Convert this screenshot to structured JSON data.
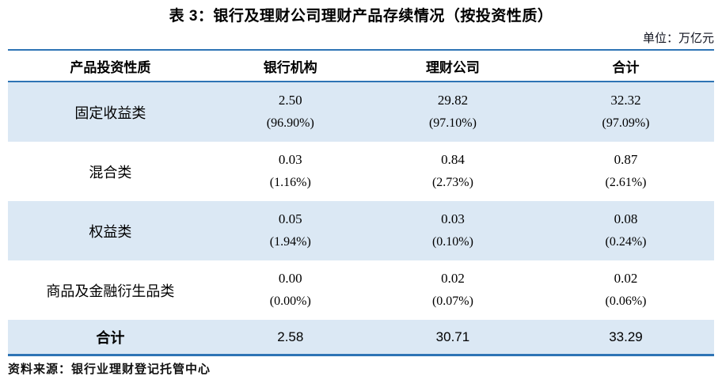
{
  "title": "表 3：银行及理财公司理财产品存续情况（按投资性质）",
  "unit_label": "单位：万亿元",
  "colors": {
    "accent_line": "#2e74b5",
    "band_fill": "#dbe8f4"
  },
  "table": {
    "columns": [
      "产品投资性质",
      "银行机构",
      "理财公司",
      "合计"
    ],
    "rows": [
      {
        "label": "固定收益类",
        "values": [
          "2.50",
          "29.82",
          "32.32"
        ],
        "pcts": [
          "(96.90%)",
          "(97.10%)",
          "(97.09%)"
        ]
      },
      {
        "label": "混合类",
        "values": [
          "0.03",
          "0.84",
          "0.87"
        ],
        "pcts": [
          "(1.16%)",
          "(2.73%)",
          "(2.61%)"
        ]
      },
      {
        "label": "权益类",
        "values": [
          "0.05",
          "0.03",
          "0.08"
        ],
        "pcts": [
          "(1.94%)",
          "(0.10%)",
          "(0.24%)"
        ]
      },
      {
        "label": "商品及金融衍生品类",
        "values": [
          "0.00",
          "0.02",
          "0.02"
        ],
        "pcts": [
          "(0.00%)",
          "(0.07%)",
          "(0.06%)"
        ]
      }
    ],
    "total_row": {
      "label": "合计",
      "values": [
        "2.58",
        "30.71",
        "33.29"
      ]
    }
  },
  "source": "资料来源：银行业理财登记托管中心"
}
